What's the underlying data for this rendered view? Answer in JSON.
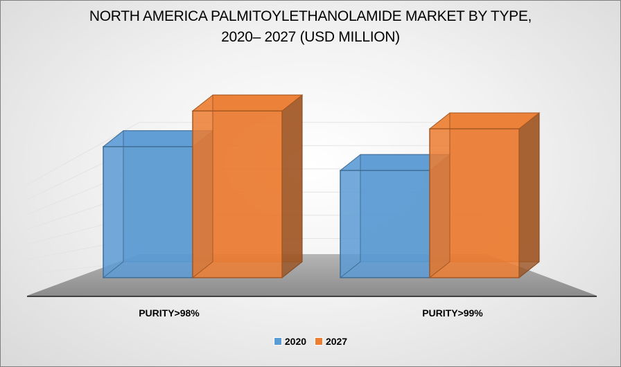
{
  "chart_data": {
    "type": "bar",
    "title_lines": [
      "NORTH AMERICA PALMITOYLETHANOLAMIDE MARKET BY TYPE,",
      "2020– 2027 (USD MILLION)"
    ],
    "categories": [
      "PURITY>98%",
      "PURITY>99%"
    ],
    "series": [
      {
        "name": "2020",
        "values": [
          22,
          18
        ],
        "color": "#5b9bd5"
      },
      {
        "name": "2027",
        "values": [
          28,
          25
        ],
        "color": "#ed7d31"
      }
    ],
    "ylim": [
      0,
      30
    ],
    "grid": true,
    "legend": "bottom",
    "three_d": true
  }
}
